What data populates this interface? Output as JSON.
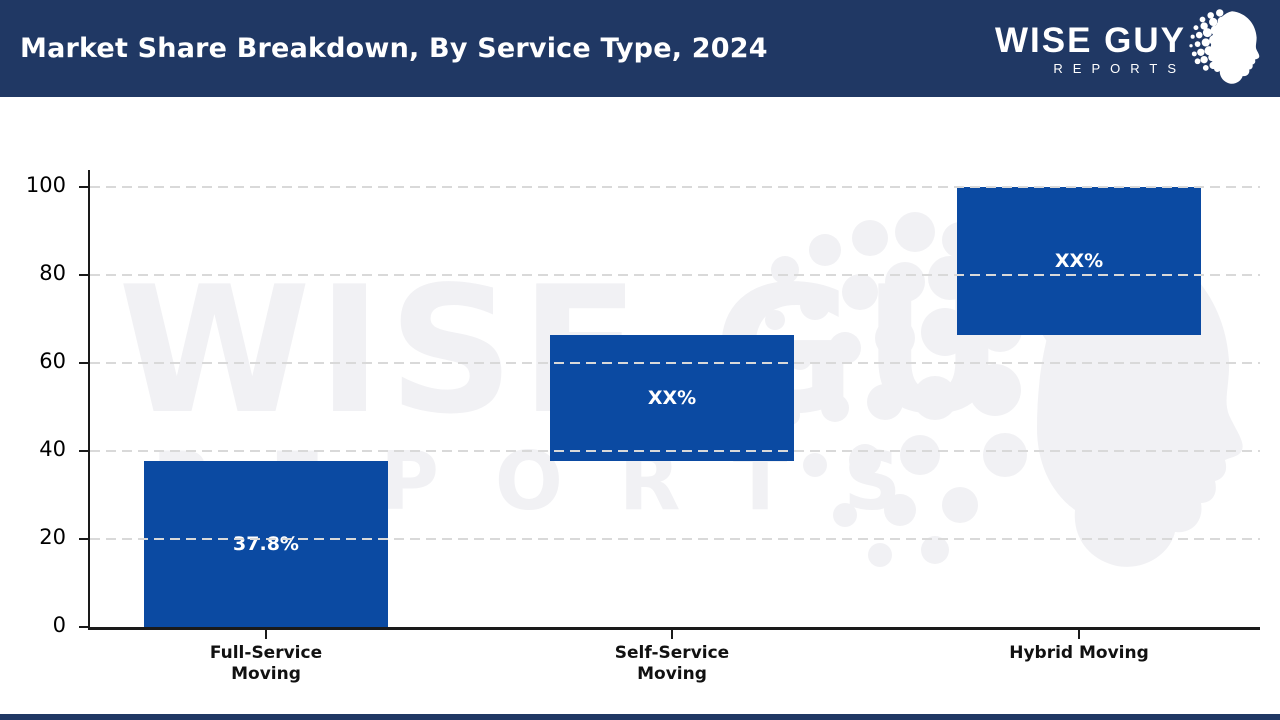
{
  "header": {
    "title": "Market Share Breakdown, By Service Type, 2024",
    "logo_line1": "WISE GUY",
    "logo_line2": "REPORTS"
  },
  "watermark": {
    "line1": "WISE GUY",
    "line2": "REPORTS"
  },
  "chart_data": {
    "type": "bar",
    "subtype": "waterfall",
    "title": "Market Share Breakdown, By Service Type, 2024",
    "categories": [
      "Full-Service Moving",
      "Self-Service Moving",
      "Hybrid Moving"
    ],
    "category_label_lines": [
      [
        "Full-Service",
        "Moving"
      ],
      [
        "Self-Service",
        "Moving"
      ],
      [
        "Hybrid Moving"
      ]
    ],
    "bars": [
      {
        "category": "Full-Service Moving",
        "start": 0,
        "end": 37.8,
        "label": "37.8%"
      },
      {
        "category": "Self-Service Moving",
        "start": 37.8,
        "end": 66.3,
        "label": "XX%"
      },
      {
        "category": "Hybrid Moving",
        "start": 66.3,
        "end": 100,
        "label": "XX%"
      }
    ],
    "ylim": [
      0,
      100
    ],
    "yticks": [
      0,
      20,
      40,
      60,
      80,
      100
    ],
    "xlabel": "",
    "ylabel": "",
    "grid": "horizontal-dashed",
    "legend": "none"
  },
  "colors": {
    "header_bg": "#203864",
    "footer_bg": "#203864",
    "bar_fill": "#0b4aa2",
    "bar_label": "#ffffff",
    "grid_line": "#d9d9d9",
    "axis": "#1a1a1a",
    "watermark": "#f1f1f4"
  }
}
